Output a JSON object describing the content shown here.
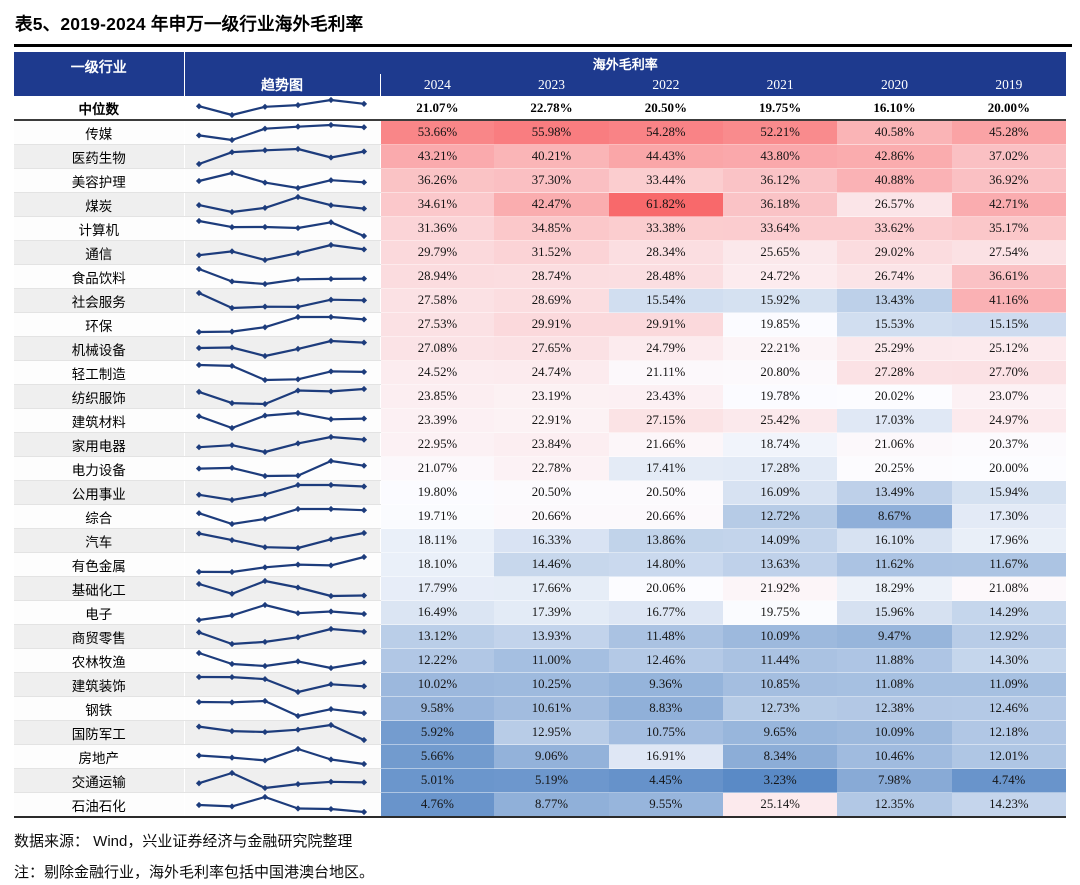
{
  "title": "表5、2019-2024 年申万一级行业海外毛利率",
  "header": {
    "industry_col": "一级行业",
    "trend_col": "趋势图",
    "group": "海外毛利率"
  },
  "footer": {
    "source": "数据来源：  Wind，兴业证券经济与金融研究院整理",
    "note": "注：剔除金融行业，海外毛利率包括中国港澳台地区。"
  },
  "colors": {
    "header_bg": "#1e3a8e",
    "sparkline": "#1d3c7c",
    "stripe": "#efefef",
    "scale_min": "#5A8AC6",
    "scale_mid": "#FCFCFF",
    "scale_max": "#F8696B"
  },
  "chart_data": {
    "type": "heatmap",
    "title": "2019-2024 年申万一级行业海外毛利率",
    "legend_position": "none",
    "grid": false,
    "value_format": "percent_2dp",
    "colorscale": {
      "min_color": "#5A8AC6",
      "mid_color": "#FCFCFF",
      "max_color": "#F8696B",
      "midpoint": "50th percentile"
    },
    "sparkline_note": "趋势图 plots each row chronologically 2019→2024",
    "columns": [
      "2024",
      "2023",
      "2022",
      "2021",
      "2020",
      "2019"
    ],
    "median": {
      "name": "中位数",
      "values": [
        21.07,
        22.78,
        20.5,
        19.75,
        16.1,
        20.0
      ]
    },
    "rows": [
      {
        "name": "传媒",
        "values": [
          53.66,
          55.98,
          54.28,
          52.21,
          40.58,
          45.28
        ]
      },
      {
        "name": "医药生物",
        "values": [
          43.21,
          40.21,
          44.43,
          43.8,
          42.86,
          37.02
        ]
      },
      {
        "name": "美容护理",
        "values": [
          36.26,
          37.3,
          33.44,
          36.12,
          40.88,
          36.92
        ]
      },
      {
        "name": "煤炭",
        "values": [
          34.61,
          42.47,
          61.82,
          36.18,
          26.57,
          42.71
        ]
      },
      {
        "name": "计算机",
        "values": [
          31.36,
          34.85,
          33.38,
          33.64,
          33.62,
          35.17
        ]
      },
      {
        "name": "通信",
        "values": [
          29.79,
          31.52,
          28.34,
          25.65,
          29.02,
          27.54
        ]
      },
      {
        "name": "食品饮料",
        "values": [
          28.94,
          28.74,
          28.48,
          24.72,
          26.74,
          36.61
        ]
      },
      {
        "name": "社会服务",
        "values": [
          27.58,
          28.69,
          15.54,
          15.92,
          13.43,
          41.16
        ]
      },
      {
        "name": "环保",
        "values": [
          27.53,
          29.91,
          29.91,
          19.85,
          15.53,
          15.15
        ]
      },
      {
        "name": "机械设备",
        "values": [
          27.08,
          27.65,
          24.79,
          22.21,
          25.29,
          25.12
        ]
      },
      {
        "name": "轻工制造",
        "values": [
          24.52,
          24.74,
          21.11,
          20.8,
          27.28,
          27.7
        ]
      },
      {
        "name": "纺织服饰",
        "values": [
          23.85,
          23.19,
          23.43,
          19.78,
          20.02,
          23.07
        ]
      },
      {
        "name": "建筑材料",
        "values": [
          23.39,
          22.91,
          27.15,
          25.42,
          17.03,
          24.97
        ]
      },
      {
        "name": "家用电器",
        "values": [
          22.95,
          23.84,
          21.66,
          18.74,
          21.06,
          20.37
        ]
      },
      {
        "name": "电力设备",
        "values": [
          21.07,
          22.78,
          17.41,
          17.28,
          20.25,
          20.0
        ]
      },
      {
        "name": "公用事业",
        "values": [
          19.8,
          20.5,
          20.5,
          16.09,
          13.49,
          15.94
        ]
      },
      {
        "name": "综合",
        "values": [
          19.71,
          20.66,
          20.66,
          12.72,
          8.67,
          17.3
        ]
      },
      {
        "name": "汽车",
        "values": [
          18.11,
          16.33,
          13.86,
          14.09,
          16.1,
          17.96
        ]
      },
      {
        "name": "有色金属",
        "values": [
          18.1,
          14.46,
          14.8,
          13.63,
          11.62,
          11.67
        ]
      },
      {
        "name": "基础化工",
        "values": [
          17.79,
          17.66,
          20.06,
          21.92,
          18.29,
          21.08
        ]
      },
      {
        "name": "电子",
        "values": [
          16.49,
          17.39,
          16.77,
          19.75,
          15.96,
          14.29
        ]
      },
      {
        "name": "商贸零售",
        "values": [
          13.12,
          13.93,
          11.48,
          10.09,
          9.47,
          12.92
        ]
      },
      {
        "name": "农林牧渔",
        "values": [
          12.22,
          11.0,
          12.46,
          11.44,
          11.88,
          14.3
        ]
      },
      {
        "name": "建筑装饰",
        "values": [
          10.02,
          10.25,
          9.36,
          10.85,
          11.08,
          11.09
        ]
      },
      {
        "name": "钢铁",
        "values": [
          9.58,
          10.61,
          8.83,
          12.73,
          12.38,
          12.46
        ]
      },
      {
        "name": "国防军工",
        "values": [
          5.92,
          12.95,
          10.75,
          9.65,
          10.09,
          12.18
        ]
      },
      {
        "name": "房地产",
        "values": [
          5.66,
          9.06,
          16.91,
          8.34,
          10.46,
          12.01
        ]
      },
      {
        "name": "交通运输",
        "values": [
          5.01,
          5.19,
          4.45,
          3.23,
          7.98,
          4.74
        ]
      },
      {
        "name": "石油石化",
        "values": [
          4.76,
          8.77,
          9.55,
          25.14,
          12.35,
          14.23
        ]
      }
    ]
  }
}
